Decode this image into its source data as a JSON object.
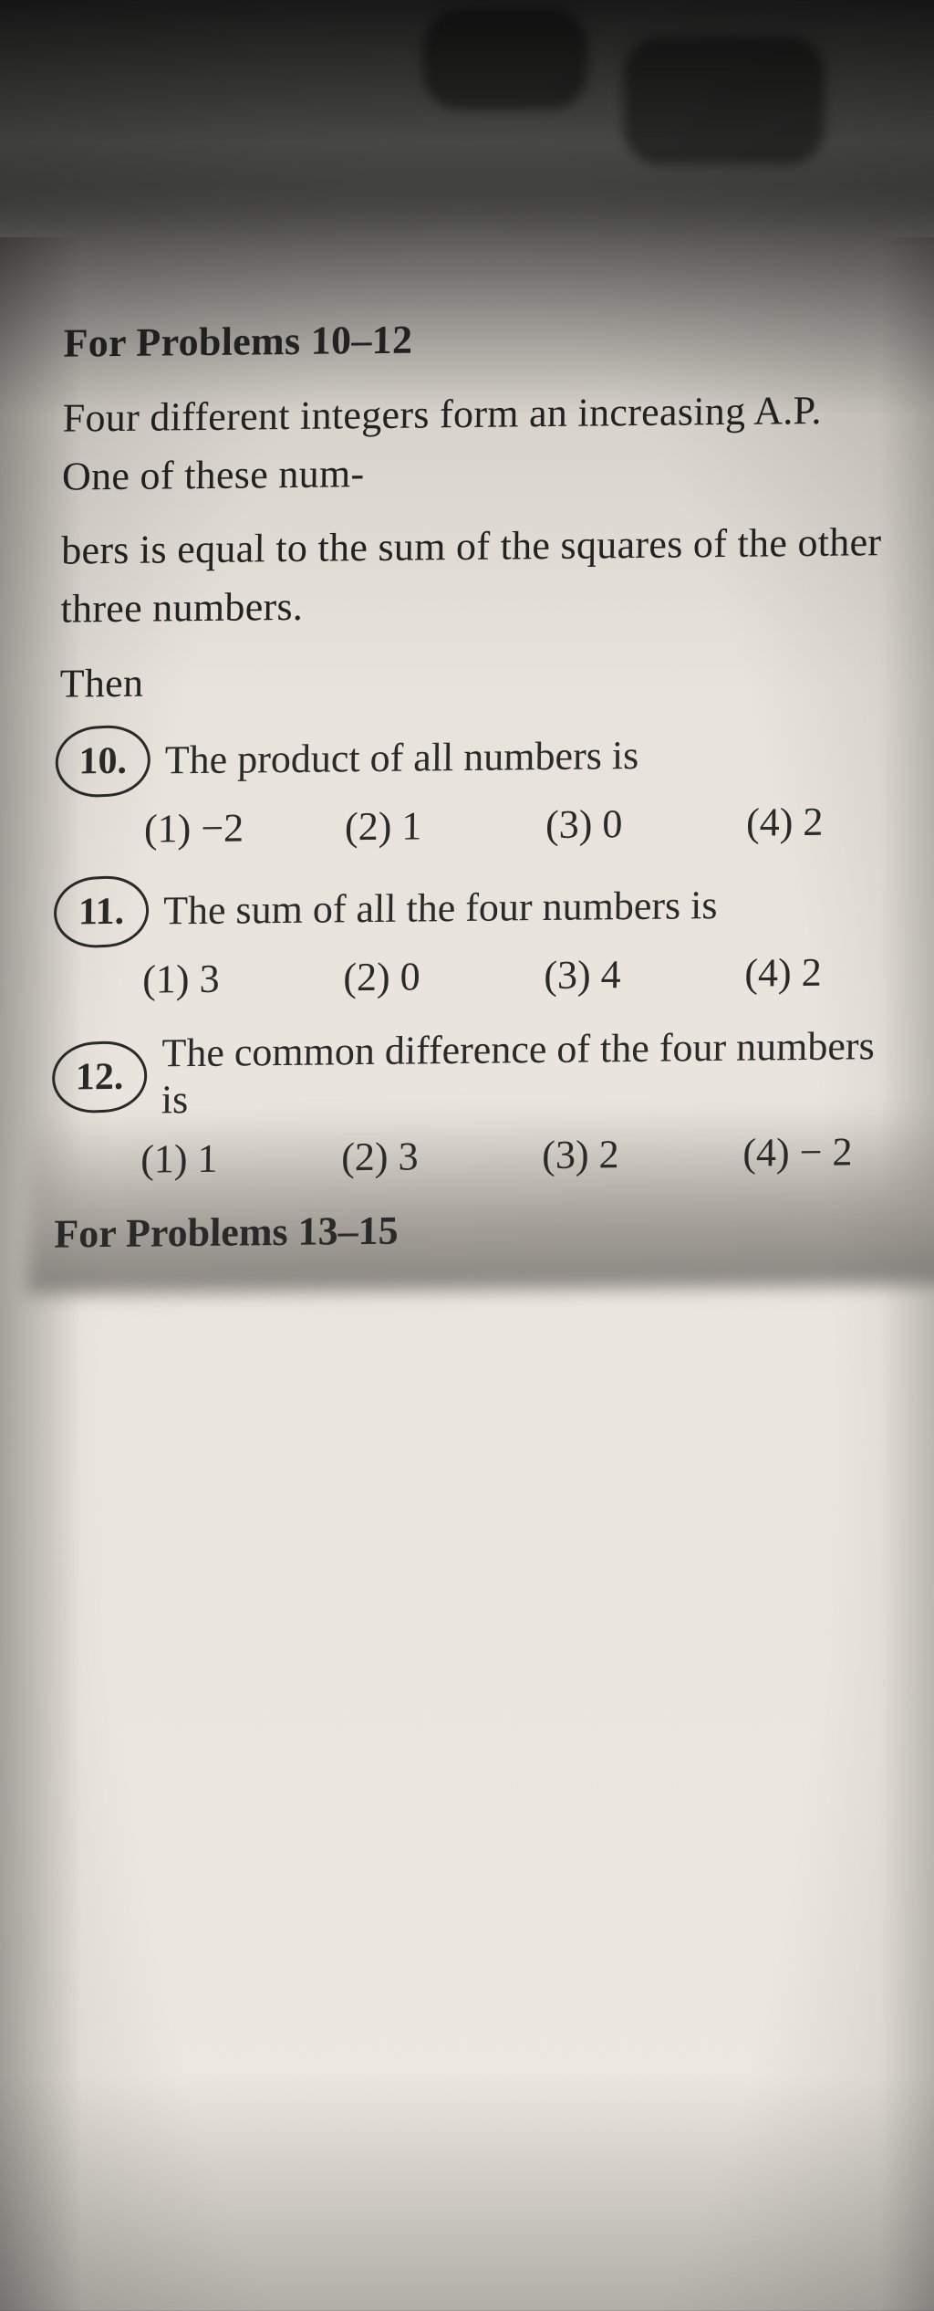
{
  "page": {
    "background_top": "#2a2a2a",
    "background_paper": "#e8e4dc",
    "text_color": "#2a2a2a",
    "font_family": "Georgia",
    "base_fontsize_pt": 32
  },
  "heading": "For Problems 10–12",
  "intro_line_1": "Four different integers form an increasing A.P. One of these num-",
  "intro_line_2": "bers is equal to the sum of the squares of the other three numbers.",
  "then": "Then",
  "questions": [
    {
      "number": "10.",
      "circled": true,
      "text": "The product of all numbers is",
      "options": [
        "(1) −2",
        "(2) 1",
        "(3) 0",
        "(4) 2"
      ]
    },
    {
      "number": "11.",
      "circled": true,
      "text": "The sum of all the four numbers is",
      "options": [
        "(1) 3",
        "(2) 0",
        "(3) 4",
        "(4) 2"
      ]
    },
    {
      "number": "12.",
      "circled": true,
      "text": "The common difference of the four numbers is",
      "options": [
        "(1) 1",
        "(2) 3",
        "(3) 2",
        "(4) − 2"
      ]
    }
  ],
  "footer": "For Problems 13–15"
}
